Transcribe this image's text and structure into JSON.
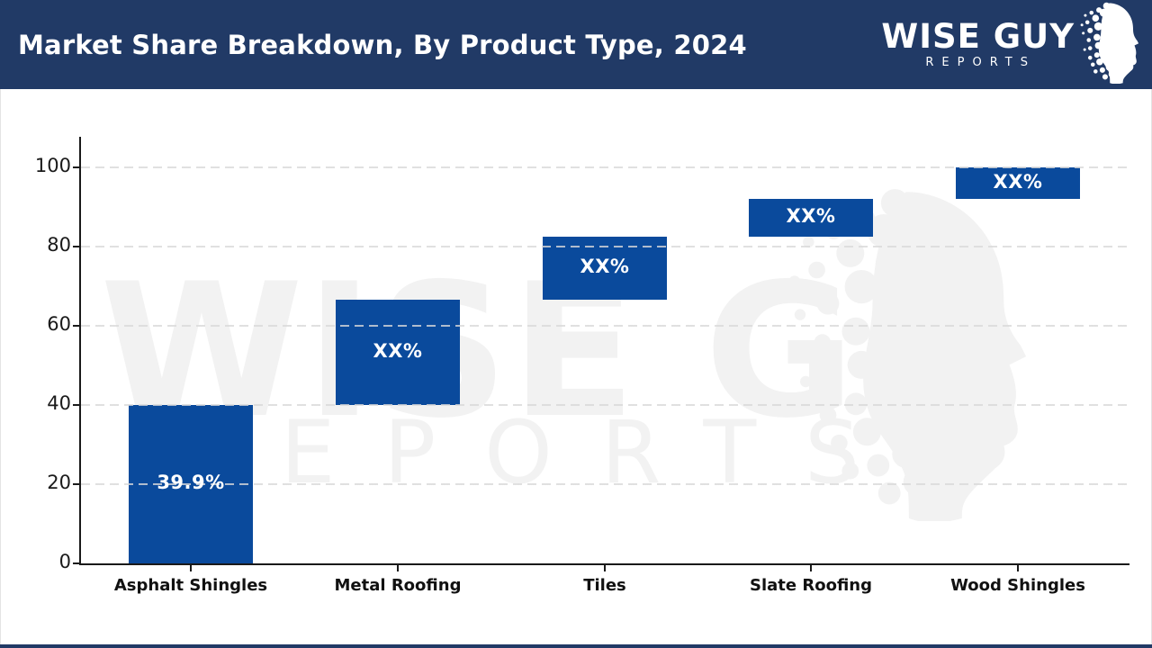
{
  "header": {
    "title": "Market Share Breakdown, By Product Type, 2024",
    "brand": {
      "name": "WISE GUY",
      "sub": "REPORTS"
    }
  },
  "watermark": {
    "wordmark": "WISE GU",
    "sub": "REPORTS"
  },
  "colors": {
    "header_bg": "#213a66",
    "footer_bg": "#213a66",
    "bar": "#0a4a9c",
    "bar_label": "#ffffff",
    "axis": "#1a1a1a",
    "grid": "#d9d9d9",
    "watermark": "#f2f2f2",
    "title_text": "#ffffff"
  },
  "chart_data": {
    "type": "bar",
    "subtype": "waterfall",
    "title": "Market Share Breakdown, By Product Type, 2024",
    "categories": [
      "Asphalt Shingles",
      "Metal Roofing",
      "Tiles",
      "Slate Roofing",
      "Wood Shingles"
    ],
    "bars": [
      {
        "category": "Asphalt Shingles",
        "start": 0,
        "end": 39.9,
        "value_label": "39.9%"
      },
      {
        "category": "Metal Roofing",
        "start": 39.9,
        "end": 66.5,
        "value_label": "XX%"
      },
      {
        "category": "Tiles",
        "start": 66.5,
        "end": 82.5,
        "value_label": "XX%"
      },
      {
        "category": "Slate Roofing",
        "start": 82.5,
        "end": 92.0,
        "value_label": "XX%"
      },
      {
        "category": "Wood Shingles",
        "start": 92.0,
        "end": 100.0,
        "value_label": "XX%"
      }
    ],
    "yticks": [
      0,
      20,
      40,
      60,
      80,
      100
    ],
    "ylim": [
      0,
      107
    ],
    "xlabel": "",
    "ylabel": "",
    "grid": "horizontal-dashed",
    "legend": "none"
  }
}
